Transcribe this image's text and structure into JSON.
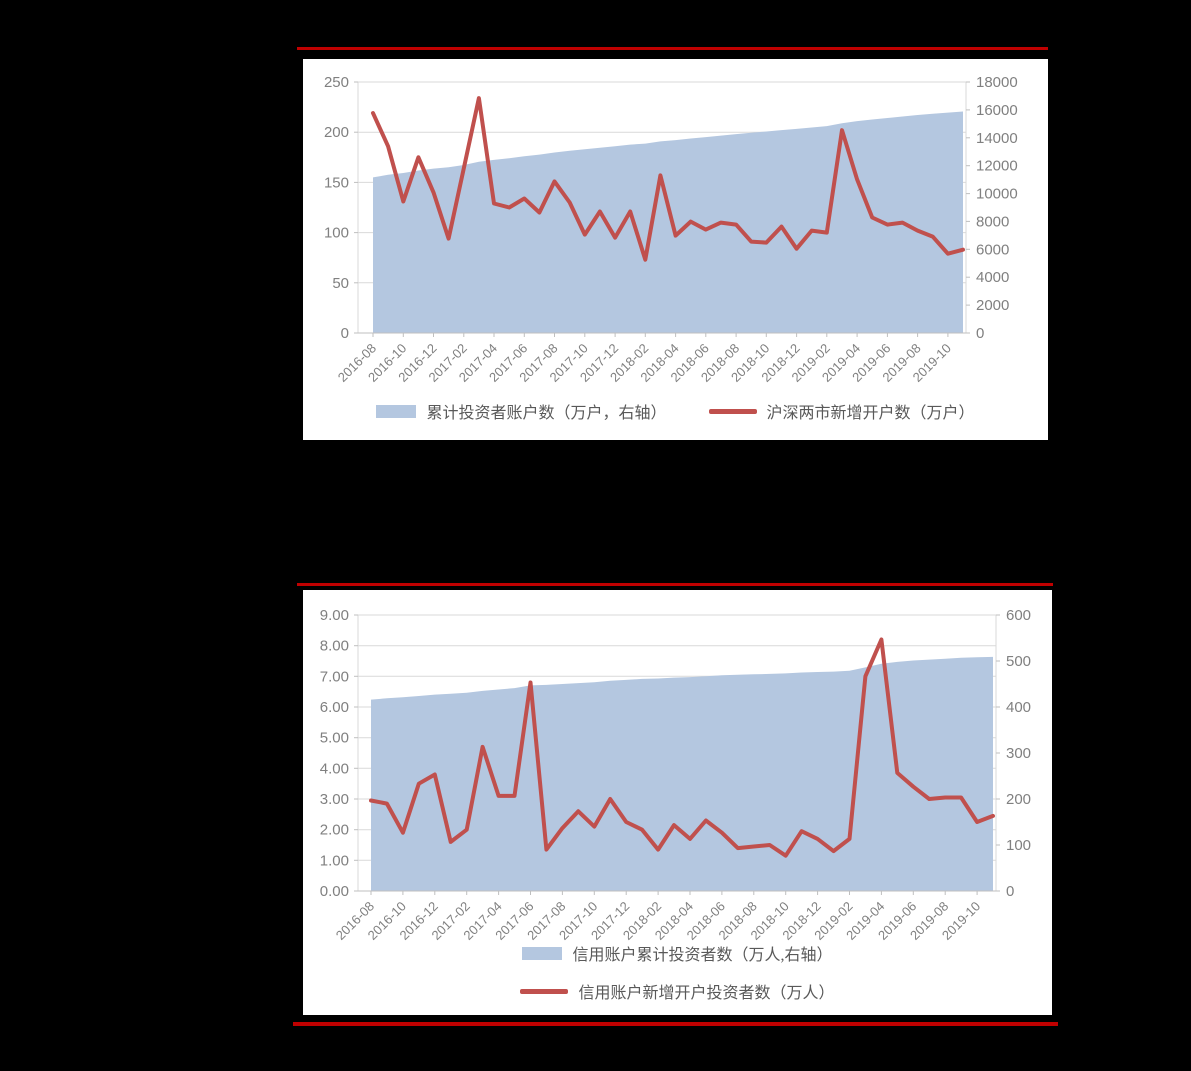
{
  "page": {
    "background": "#000000",
    "panel_background": "#ffffff",
    "separator_color": "#c00000",
    "grid_color": "#d9d9d9",
    "axis_line_color": "#bfbfbf",
    "axis_text_color": "#808080",
    "legend_text_color": "#595959"
  },
  "chart_data": [
    {
      "type": "area",
      "combo": "area+line",
      "title": "",
      "legend_position": "bottom",
      "grid": "horizontal",
      "categories": [
        "2016-08",
        "2016-09",
        "2016-10",
        "2016-11",
        "2016-12",
        "2017-01",
        "2017-02",
        "2017-03",
        "2017-04",
        "2017-05",
        "2017-06",
        "2017-07",
        "2017-08",
        "2017-09",
        "2017-10",
        "2017-11",
        "2017-12",
        "2018-01",
        "2018-02",
        "2018-03",
        "2018-04",
        "2018-05",
        "2018-06",
        "2018-07",
        "2018-08",
        "2018-09",
        "2018-10",
        "2018-11",
        "2018-12",
        "2019-01",
        "2019-02",
        "2019-03",
        "2019-04",
        "2019-05",
        "2019-06",
        "2019-07",
        "2019-08",
        "2019-09",
        "2019-10",
        "2019-11"
      ],
      "x_tick_labels": [
        "2016-08",
        "2016-10",
        "2016-12",
        "2017-02",
        "2017-04",
        "2017-06",
        "2017-08",
        "2017-10",
        "2017-12",
        "2018-02",
        "2018-04",
        "2018-06",
        "2018-08",
        "2018-10",
        "2018-12",
        "2019-02",
        "2019-04",
        "2019-06",
        "2019-08",
        "2019-10"
      ],
      "left_axis": {
        "min": 0,
        "max": 250,
        "step": 50,
        "tick_labels": [
          "250",
          "200",
          "150",
          "100",
          "50",
          "0"
        ]
      },
      "right_axis": {
        "min": 0,
        "max": 18000,
        "step": 2000,
        "tick_labels": [
          "18000",
          "16000",
          "14000",
          "12000",
          "10000",
          "8000",
          "6000",
          "4000",
          "2000",
          "0"
        ]
      },
      "series": [
        {
          "name": "累计投资者账户数（万户，右轴）",
          "chart": "area",
          "axis": "right",
          "color": "#b4c7e0",
          "values": [
            11160,
            11346,
            11477,
            11652,
            11792,
            11886,
            12050,
            12284,
            12413,
            12538,
            12672,
            12792,
            12943,
            13073,
            13171,
            13292,
            13387,
            13508,
            13581,
            13738,
            13835,
            13946,
            14049,
            14159,
            14267,
            14358,
            14448,
            14554,
            14638,
            14740,
            14840,
            15042,
            15195,
            15310,
            15418,
            15528,
            15630,
            15726,
            15805,
            15888
          ]
        },
        {
          "name": "沪深两市新增开户数（万户）",
          "chart": "line",
          "axis": "left",
          "color": "#c0504d",
          "values": [
            219,
            186,
            131,
            175,
            140,
            94,
            164,
            234,
            129,
            125,
            134,
            120,
            151,
            130,
            98,
            121,
            95,
            121,
            73,
            157,
            97,
            111,
            103,
            110,
            108,
            91,
            90,
            106,
            84,
            102,
            100,
            202,
            153,
            115,
            108,
            110,
            102,
            96,
            79,
            83
          ]
        }
      ]
    },
    {
      "type": "area",
      "combo": "area+line",
      "title": "",
      "legend_position": "bottom",
      "grid": "horizontal",
      "categories": [
        "2016-08",
        "2016-09",
        "2016-10",
        "2016-11",
        "2016-12",
        "2017-01",
        "2017-02",
        "2017-03",
        "2017-04",
        "2017-05",
        "2017-06",
        "2017-07",
        "2017-08",
        "2017-09",
        "2017-10",
        "2017-11",
        "2017-12",
        "2018-01",
        "2018-02",
        "2018-03",
        "2018-04",
        "2018-05",
        "2018-06",
        "2018-07",
        "2018-08",
        "2018-09",
        "2018-10",
        "2018-11",
        "2018-12",
        "2019-01",
        "2019-02",
        "2019-03",
        "2019-04",
        "2019-05",
        "2019-06",
        "2019-07",
        "2019-08",
        "2019-09",
        "2019-10",
        "2019-11"
      ],
      "x_tick_labels": [
        "2016-08",
        "2016-10",
        "2016-12",
        "2017-02",
        "2017-04",
        "2017-06",
        "2017-08",
        "2017-10",
        "2017-12",
        "2018-02",
        "2018-04",
        "2018-06",
        "2018-08",
        "2018-10",
        "2018-12",
        "2019-02",
        "2019-04",
        "2019-06",
        "2019-08",
        "2019-10"
      ],
      "left_axis": {
        "min": 0,
        "max": 9,
        "step": 1,
        "tick_labels": [
          "9.00",
          "8.00",
          "7.00",
          "6.00",
          "5.00",
          "4.00",
          "3.00",
          "2.00",
          "1.00",
          "0.00"
        ]
      },
      "right_axis": {
        "min": 0,
        "max": 600,
        "step": 100,
        "tick_labels": [
          "600",
          "500",
          "400",
          "300",
          "200",
          "100",
          "0"
        ]
      },
      "series": [
        {
          "name": "信用账户累计投资者数（万人,右轴）",
          "chart": "area",
          "axis": "right",
          "color": "#b4c7e0",
          "values": [
            416,
            419,
            421,
            424,
            427,
            429,
            431,
            435,
            438,
            441,
            447,
            448,
            450,
            452,
            454,
            457,
            459,
            461,
            462,
            464,
            465,
            467,
            469,
            470,
            471,
            472,
            473,
            475,
            476,
            477,
            479,
            486,
            494,
            498,
            501,
            503,
            505,
            507,
            508,
            509
          ]
        },
        {
          "name": "信用账户新增开户投资者数（万人）",
          "chart": "line",
          "axis": "left",
          "color": "#c0504d",
          "values": [
            2.95,
            2.85,
            1.9,
            3.5,
            3.8,
            1.6,
            2.0,
            4.7,
            3.1,
            3.1,
            6.8,
            1.35,
            2.05,
            2.6,
            2.1,
            3.0,
            2.25,
            2.0,
            1.35,
            2.15,
            1.7,
            2.3,
            1.9,
            1.4,
            1.45,
            1.5,
            1.15,
            1.95,
            1.7,
            1.3,
            1.7,
            7.0,
            8.2,
            3.85,
            3.4,
            3.0,
            3.05,
            3.05,
            2.25,
            2.45
          ]
        }
      ]
    }
  ]
}
